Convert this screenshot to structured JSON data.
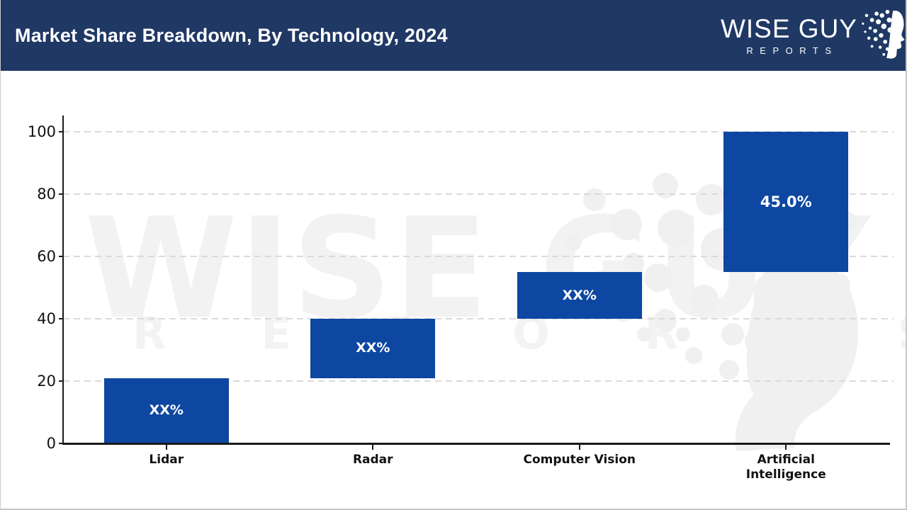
{
  "header": {
    "title": "Market Share Breakdown, By Technology, 2024",
    "logo": {
      "line1": "WISE GUY",
      "line2": "REPORTS"
    }
  },
  "watermark": {
    "line1": "WISE GUY",
    "line2": "R E P O R T S"
  },
  "colors": {
    "header_bg": "#1f3864",
    "bar": "#0d47a1",
    "grid": "#dadada",
    "axis": "#1a1a1a",
    "watermark": "#f2f2f2",
    "bar_label_text": "#ffffff"
  },
  "chart_data": {
    "type": "bar",
    "variant": "floating-waterfall",
    "title": "Market Share Breakdown, By Technology, 2024",
    "xlabel": "",
    "ylabel": "",
    "ylim": [
      0,
      100
    ],
    "yticks": [
      0,
      20,
      40,
      60,
      80,
      100
    ],
    "grid": "horizontal-dashed",
    "legend": false,
    "categories": [
      "Lidar",
      "Radar",
      "Computer Vision",
      "Artificial Intelligence"
    ],
    "series": [
      {
        "name": "Market share (%)",
        "segments": [
          {
            "category": "Lidar",
            "start": 0,
            "end": 21,
            "value": 21,
            "label": "XX%"
          },
          {
            "category": "Radar",
            "start": 21,
            "end": 40,
            "value": 19,
            "label": "XX%"
          },
          {
            "category": "Computer Vision",
            "start": 40,
            "end": 55,
            "value": 15,
            "label": "XX%"
          },
          {
            "category": "Artificial Intelligence",
            "start": 55,
            "end": 100,
            "value": 45,
            "label": "45.0%"
          }
        ]
      }
    ]
  }
}
